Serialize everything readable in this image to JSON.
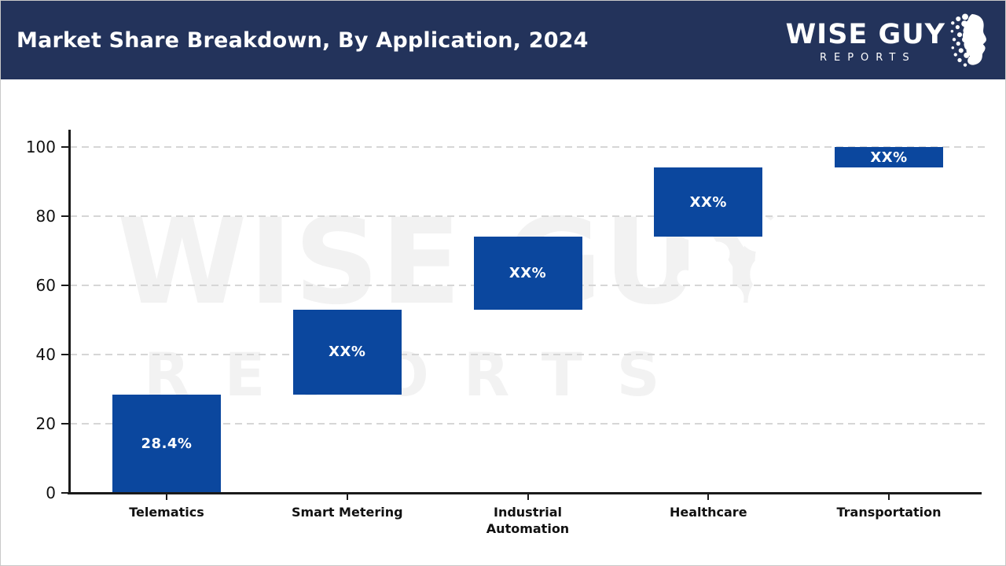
{
  "header": {
    "title": "Market Share Breakdown, By Application, 2024",
    "logo_line1": "WISE GUY",
    "logo_line2": "REPORTS"
  },
  "watermark": {
    "line1": "WISE GUY",
    "line2": "REPORTS"
  },
  "chart_data": {
    "type": "bar",
    "variant": "waterfall",
    "title": "Market Share Breakdown, By Application, 2024",
    "categories": [
      "Telematics",
      "Smart Metering",
      "Industrial\nAutomation",
      "Healthcare",
      "Transportation"
    ],
    "series": [
      {
        "name": "Market share (cumulative %)",
        "segments": [
          {
            "category": "Telematics",
            "start": 0,
            "end": 28.4,
            "label": "28.4%"
          },
          {
            "category": "Smart Metering",
            "start": 28.4,
            "end": 53,
            "label": "XX%"
          },
          {
            "category": "Industrial Automation",
            "start": 53,
            "end": 74,
            "label": "XX%"
          },
          {
            "category": "Healthcare",
            "start": 74,
            "end": 94,
            "label": "XX%"
          },
          {
            "category": "Transportation",
            "start": 94,
            "end": 100,
            "label": "XX%"
          }
        ]
      }
    ],
    "ylim": [
      0,
      100
    ],
    "yticks": [
      0,
      20,
      40,
      60,
      80,
      100
    ],
    "grid": "horizontal-dashed",
    "legend": "none"
  },
  "colors": {
    "header_bg": "#23335B",
    "bar": "#0B479E",
    "bar_label": "#FFFFFF",
    "axis": "#1A1A1A",
    "tick_text": "#111111",
    "grid": "#D6D6D6",
    "watermark": "#F2F2F2",
    "frame_border": "#C9C9C9",
    "background": "#FFFFFF"
  }
}
